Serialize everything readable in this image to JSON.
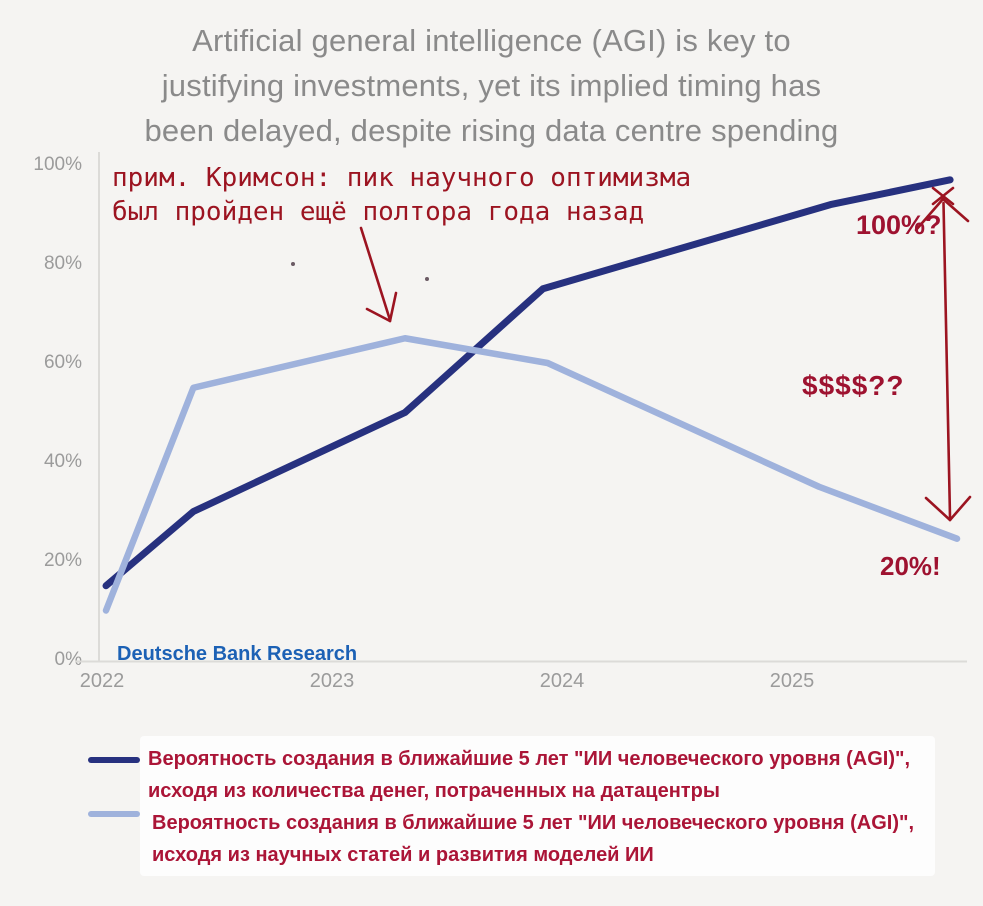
{
  "title": {
    "line1": "Artificial general intelligence (AGI) is key to",
    "line2": "justifying investments, yet its implied timing has",
    "line3": "been delayed, despite rising data centre spending"
  },
  "note": {
    "line1": "прим. Кримсон: пик научного оптимизма",
    "line2": "был пройден ещё полтора года назад"
  },
  "callouts": {
    "top": "100%?",
    "middle": "$$$$??",
    "bottom": "20%!"
  },
  "source": {
    "label": "Deutsche Bank Research"
  },
  "colors": {
    "page_bg": "#f5f4f2",
    "card_bg": "#fdfdfd",
    "title_gray": "#8a8a8a",
    "tick_gray": "#9b9b9b",
    "axis_line": "#dcdbd8",
    "navy": "#27317f",
    "light_blue": "#9fb2dc",
    "red": "#9c1421",
    "maroon": "#9e1230",
    "crimson": "#ab1537",
    "db_blue": "#1c61b5"
  },
  "chart_data": {
    "type": "line",
    "title": "Artificial general intelligence (AGI) is key to justifying investments, yet its implied timing has been delayed, despite rising data centre spending",
    "xlabel": "",
    "ylabel": "",
    "xlim": [
      2022,
      2025.75
    ],
    "ylim": [
      0,
      100
    ],
    "x_ticks": [
      2022,
      2023,
      2024,
      2025
    ],
    "y_ticks": [
      100,
      80,
      60,
      40,
      20,
      0
    ],
    "grid": false,
    "legend_position": "bottom",
    "source": "Deutsche Bank Research",
    "series": [
      {
        "name": "Вероятность создания в ближайшие 5 лет \"ИИ человеческого уровня (AGI)\", исходя из количества денег, потраченных на датацентры",
        "legend_line1": "Вероятность создания в ближайшие 5 лет \"ИИ человеческого уровня (AGI)\",",
        "legend_line2": "исходя из количества денег, потраченных на датацентры",
        "color": "#27317f",
        "stroke_width": 7,
        "x": [
          2022.0,
          2022.38,
          2023.3,
          2023.9,
          2025.15,
          2025.67
        ],
        "y": [
          15,
          30,
          50,
          75,
          92,
          97
        ]
      },
      {
        "name": "Вероятность создания в ближайшие 5 лет \"ИИ человеческого уровня (AGI)\", исходя из научных статей и развития моделей ИИ",
        "legend_line1": "Вероятность создания в ближайшие 5 лет \"ИИ человеческого уровня (AGI)\",",
        "legend_line2": "исходя из научных статей и развития моделей ИИ",
        "color": "#9fb2dc",
        "stroke_width": 6.5,
        "x": [
          2022.0,
          2022.38,
          2023.3,
          2023.92,
          2025.1,
          2025.7
        ],
        "y": [
          10,
          55,
          65,
          60,
          35,
          24.5
        ]
      }
    ]
  }
}
